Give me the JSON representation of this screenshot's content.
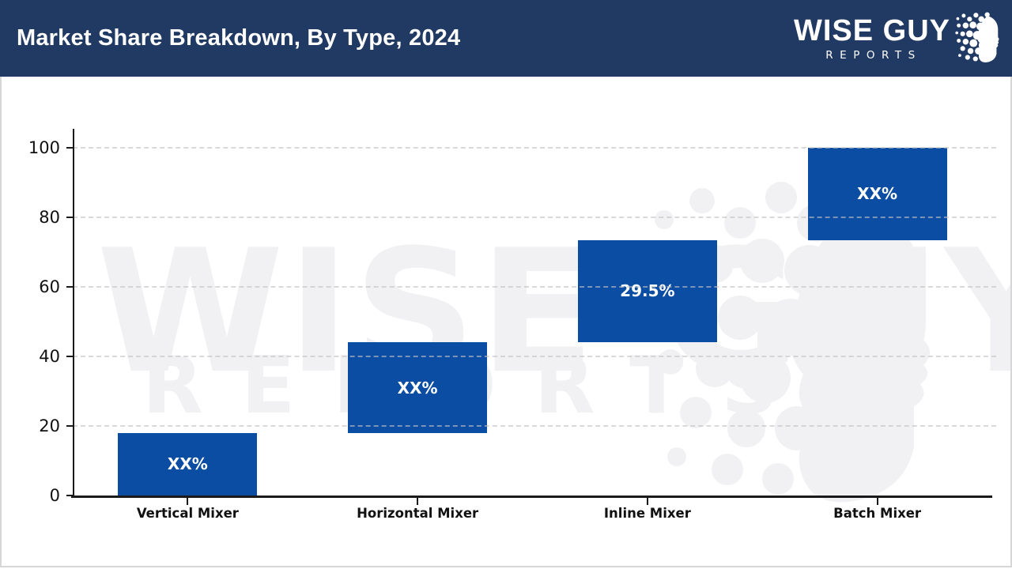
{
  "header": {
    "title": "Market Share Breakdown, By Type, 2024",
    "logo": {
      "line1": "WISE GUY",
      "line2": "REPORTS"
    }
  },
  "watermark": {
    "line1": "WISE GUY",
    "line2": "REPORTS"
  },
  "chart_data": {
    "type": "bar",
    "subtype": "floating-waterfall",
    "title": "Market Share Breakdown, By Type, 2024",
    "categories": [
      "Vertical Mixer",
      "Horizontal Mixer",
      "Inline Mixer",
      "Batch Mixer"
    ],
    "bars": [
      {
        "category": "Vertical Mixer",
        "start": 0,
        "end": 18,
        "label": "XX%"
      },
      {
        "category": "Horizontal Mixer",
        "start": 18,
        "end": 44,
        "label": "XX%"
      },
      {
        "category": "Inline Mixer",
        "start": 44,
        "end": 73.5,
        "label": "29.5%"
      },
      {
        "category": "Batch Mixer",
        "start": 73.5,
        "end": 100,
        "label": "XX%"
      }
    ],
    "xlabel": "",
    "ylabel": "",
    "ylim": [
      0,
      100
    ],
    "yticks": [
      0,
      20,
      40,
      60,
      80,
      100
    ],
    "grid": "horizontal-dashed",
    "legend": "none",
    "colors": {
      "bar": "#0B4DA2",
      "bar_label": "#ffffff",
      "header_bg": "#213A63",
      "axis": "#1a1a1a",
      "grid": "#c9c9c9",
      "watermark": "#f1f1f4"
    }
  }
}
